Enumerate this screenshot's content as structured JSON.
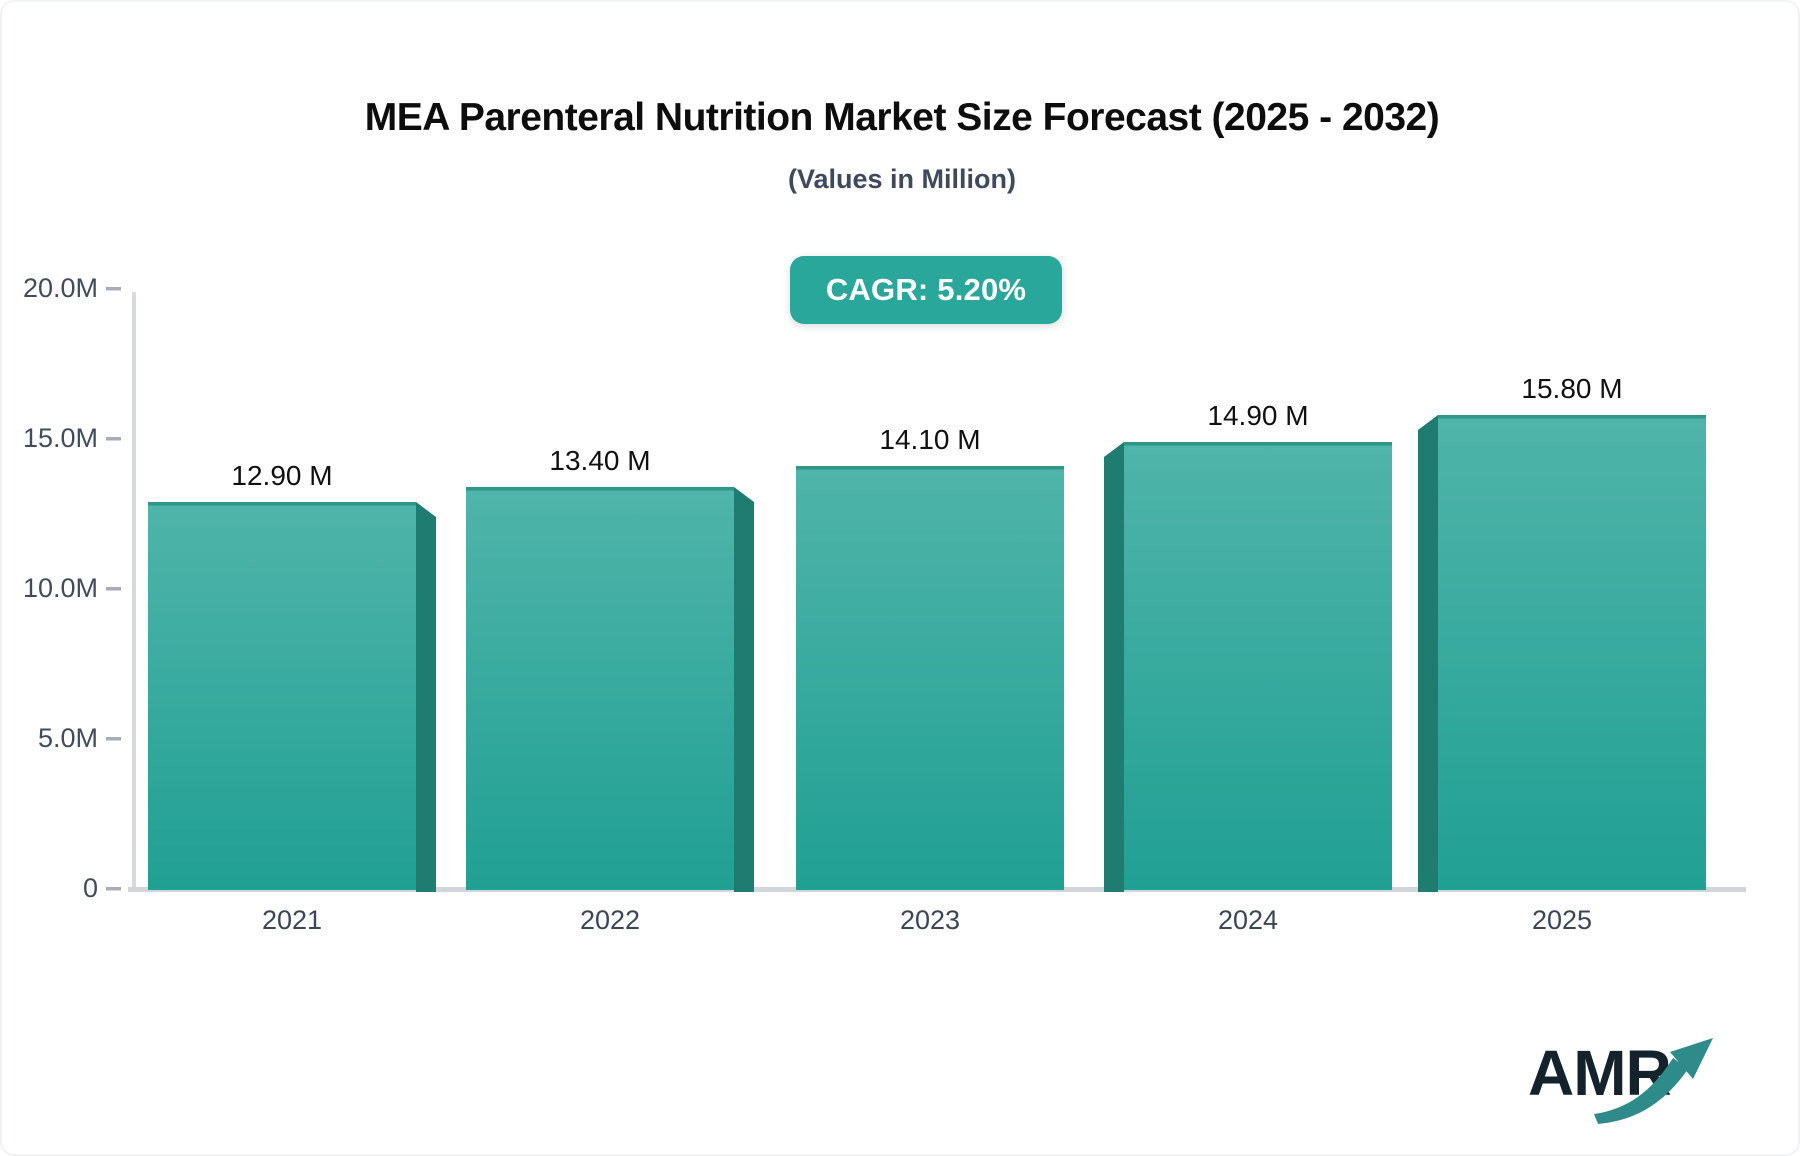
{
  "title": "MEA Parenteral Nutrition Market Size Forecast (2025 - 2032)",
  "subtitle": "(Values in Million)",
  "badge": {
    "label": "CAGR: 5.20%",
    "background": "#2aa79b"
  },
  "chart_data": {
    "type": "bar",
    "categories": [
      "2021",
      "2022",
      "2023",
      "2024",
      "2025"
    ],
    "values": [
      12.9,
      13.4,
      14.1,
      14.9,
      15.8
    ],
    "bar_labels": [
      "12.90 M",
      "13.40 M",
      "14.10 M",
      "14.90 M",
      "15.80 M"
    ],
    "title": "MEA Parenteral Nutrition Market Size Forecast (2025 - 2032)",
    "subtitle": "(Values in Million)",
    "xlabel": "",
    "ylabel": "",
    "unit": "Million",
    "ylim": [
      0,
      20
    ],
    "yticks": {
      "values": [
        20,
        15,
        10,
        5,
        0
      ],
      "labels": [
        "20.0M",
        "15.0M",
        "10.0M",
        "5.0M",
        "0"
      ]
    },
    "grid": false,
    "legend": "none",
    "style": "3d-extruded-bars-facing-center",
    "colors": {
      "bar_face_top": "#50b4aa",
      "bar_face_bottom": "#20a093",
      "bar_top_edge": "#2f968a",
      "bar_side": "#1f7c70",
      "axis_line": "#d7dade",
      "baseline": "#d2d6da",
      "tick": "#a6adb6"
    }
  },
  "logo": {
    "text": "AMR",
    "text_color": "#14222c",
    "arrow_color": "#2e8b89"
  }
}
